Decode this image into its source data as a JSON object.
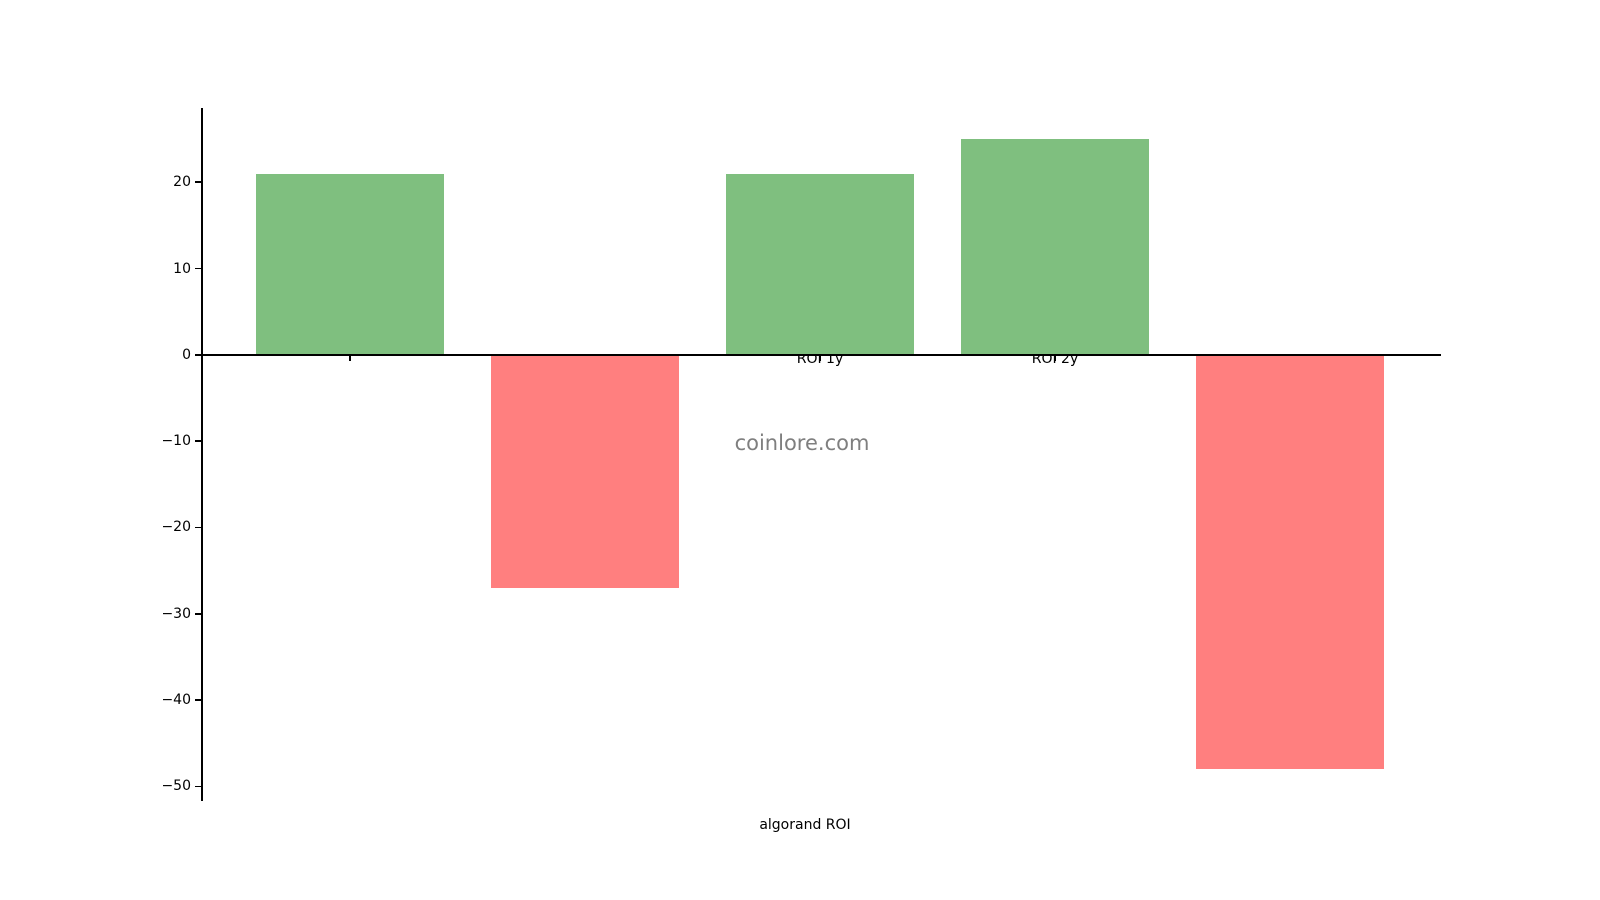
{
  "watermark": {
    "text": "coinlore.com",
    "color": "#7f7f7f"
  },
  "chart_data": {
    "type": "bar",
    "title": "",
    "xlabel": "algorand ROI",
    "ylabel": "",
    "categories": [
      "",
      "",
      "ROI 1y",
      "ROI 2y",
      ""
    ],
    "values": [
      21,
      -27,
      21,
      25,
      -48
    ],
    "positive_color": "#7fbf7f",
    "negative_color": "#ff7f7f",
    "axis_color": "#000000",
    "tick_label_color": "#000000",
    "yticks": [
      20,
      10,
      0,
      -10,
      -20,
      -30,
      -40,
      -50
    ],
    "ylim": [
      -51.7,
      28.6
    ],
    "grid": false,
    "legend": "none"
  }
}
